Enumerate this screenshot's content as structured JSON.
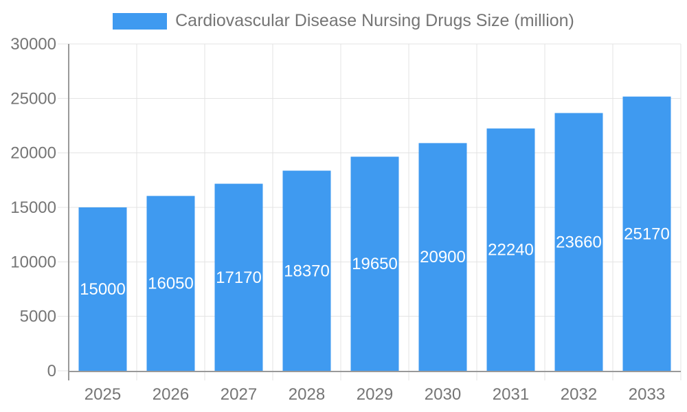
{
  "chart_data": {
    "type": "bar",
    "title": "Cardiovascular Disease Nursing Drugs Size (million)",
    "legend": {
      "position": "top",
      "entries": [
        "Cardiovascular Disease Nursing Drugs Size (million)"
      ]
    },
    "categories": [
      "2025",
      "2026",
      "2027",
      "2028",
      "2029",
      "2030",
      "2031",
      "2032",
      "2033"
    ],
    "series": [
      {
        "name": "Cardiovascular Disease Nursing Drugs Size (million)",
        "values": [
          15000,
          16050,
          17170,
          18370,
          19650,
          20900,
          22240,
          23660,
          25170
        ]
      }
    ],
    "data_labels": [
      "15000",
      "16050",
      "17170",
      "18370",
      "19650",
      "20900",
      "22240",
      "23660",
      "25170"
    ],
    "xlabel": "",
    "ylabel": "",
    "ylim": [
      0,
      30000
    ],
    "yticks": [
      0,
      5000,
      10000,
      15000,
      20000,
      25000,
      30000
    ],
    "grid": true,
    "colors": {
      "bar": "#3f9af0",
      "bar_label_text": "#ffffff",
      "axis_line": "#999999",
      "grid_line": "#e3e3e3",
      "tick_text": "#757575"
    }
  }
}
